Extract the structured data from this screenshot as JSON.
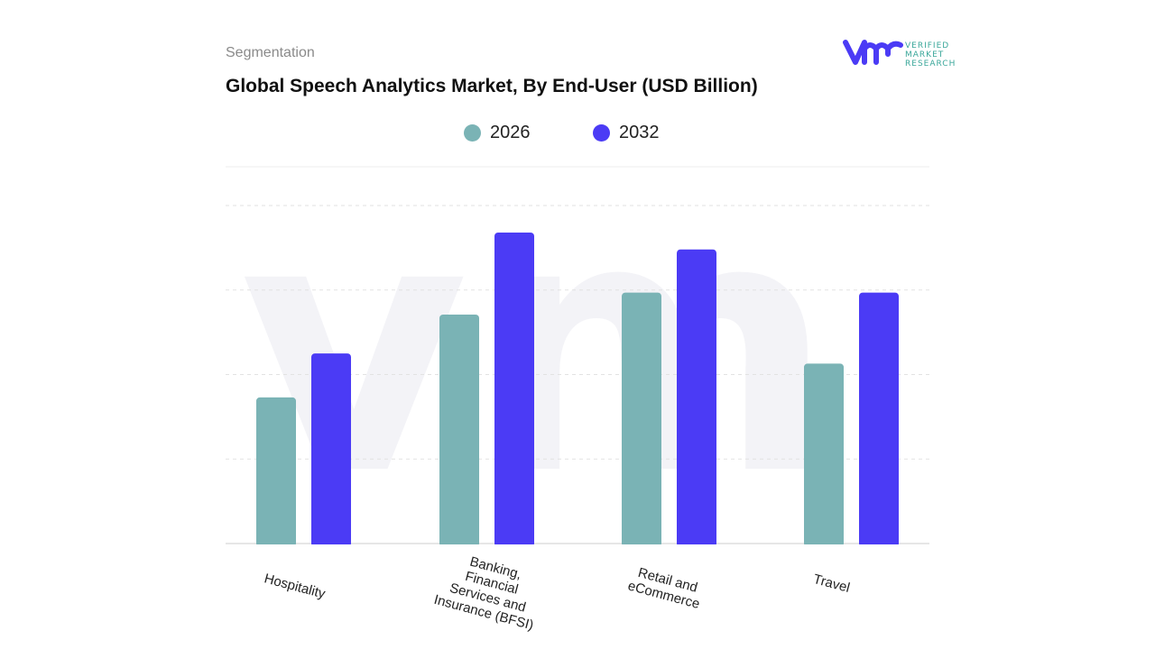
{
  "header": {
    "section": "Segmentation",
    "title": "Global Speech Analytics Market, By End-User (USD Billion)"
  },
  "logo": {
    "text": "VERIFIED MARKET RESEARCH",
    "lines": [
      "VERIFIED",
      "MARKET",
      "RESEARCH"
    ]
  },
  "chart_data": {
    "type": "bar",
    "title": "Global Speech Analytics Market, By End-User (USD Billion)",
    "categories": [
      "Hospitality",
      "Banking, Financial Services and Insurance (BFSI)",
      "Retail and eCommerce",
      "Travel"
    ],
    "category_lines": [
      [
        "Hospitality"
      ],
      [
        "Banking,",
        "Financial",
        "Services and",
        "Insurance (BFSI)"
      ],
      [
        "Retail and",
        "eCommerce"
      ],
      [
        "Travel"
      ]
    ],
    "series": [
      {
        "name": "2026",
        "color": "#7ab3b5",
        "values": [
          1.73,
          2.71,
          2.97,
          2.13
        ]
      },
      {
        "name": "2032",
        "color": "#4b3bf5",
        "values": [
          2.25,
          3.68,
          3.48,
          2.97
        ]
      }
    ],
    "ylim": [
      0,
      4
    ],
    "note_values": "relative estimates; no y-axis ticks printed",
    "grid": true,
    "legend": "top-center",
    "xlabel": "",
    "ylabel": ""
  }
}
